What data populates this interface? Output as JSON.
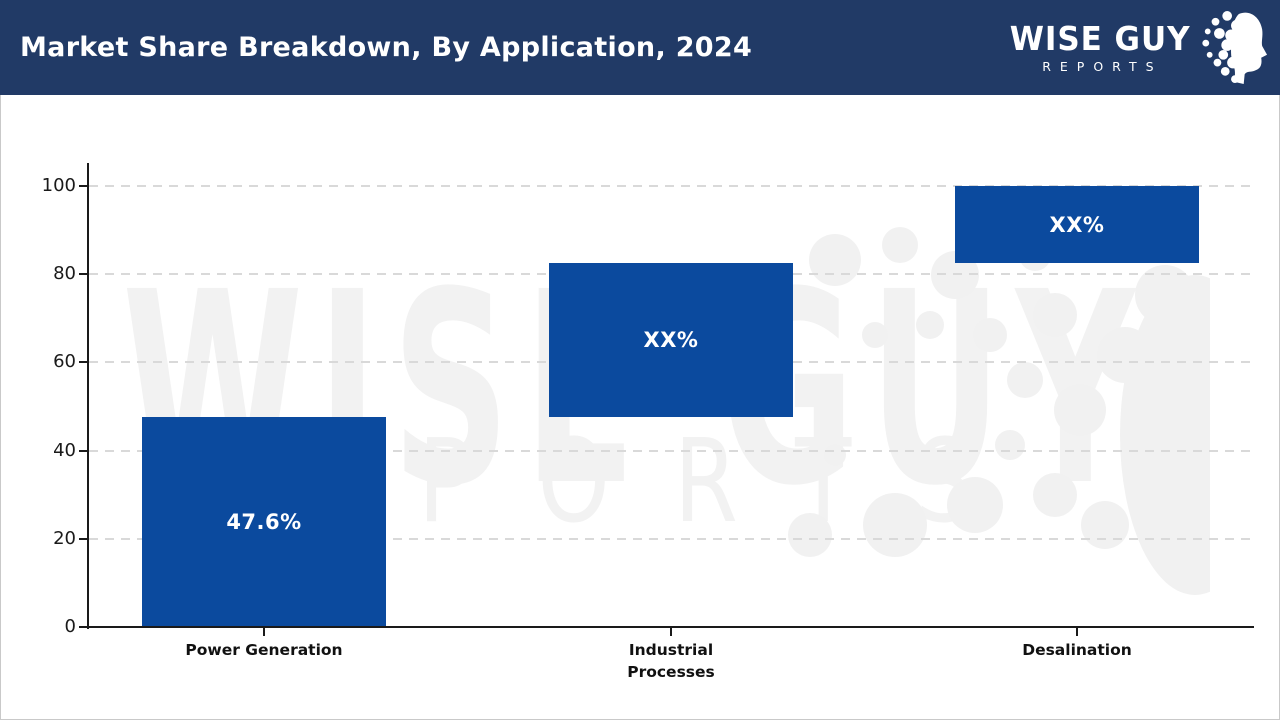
{
  "header": {
    "title": "Market Share Breakdown, By Application, 2024",
    "bg_color": "#213a66",
    "logo": {
      "name": "WISE GUY",
      "sub": "REPORTS"
    }
  },
  "watermark": {
    "line1": "WISE GUY",
    "line2": "REPORTS"
  },
  "chart_data": {
    "type": "bar",
    "variant": "floating stacked segments (waterfall-style market share breakdown)",
    "title": "Market Share Breakdown, By Application, 2024",
    "categories": [
      "Power Generation",
      "Industrial\nProcesses",
      "Desalination"
    ],
    "segments": [
      {
        "category": "Power Generation",
        "label": "47.6%",
        "start": 0,
        "end": 47.6
      },
      {
        "category": "Industrial Processes",
        "label": "XX%",
        "start": 47.6,
        "end": 82.5
      },
      {
        "category": "Desalination",
        "label": "XX%",
        "start": 82.5,
        "end": 100
      }
    ],
    "yticks": [
      0,
      20,
      40,
      60,
      80,
      100
    ],
    "ylim": [
      0,
      105
    ],
    "xlabel": "",
    "ylabel": "",
    "grid": "dashed horizontal gridlines",
    "legend": null,
    "bar_color": "#0b4a9e",
    "bar_label_color": "#ffffff"
  }
}
